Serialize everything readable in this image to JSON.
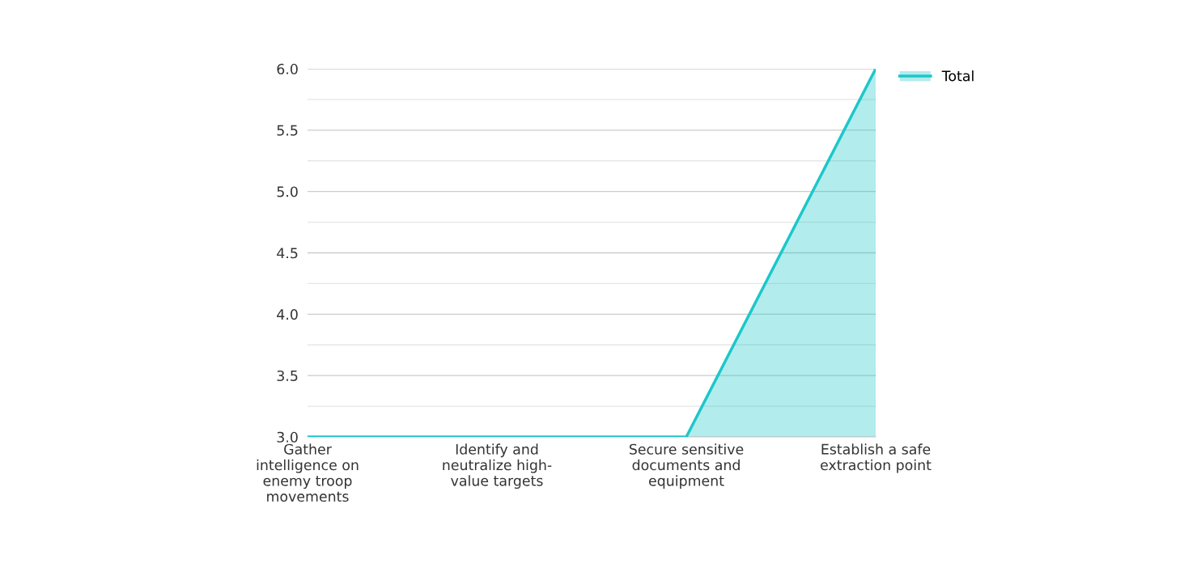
{
  "chart_data": {
    "type": "area",
    "categories": [
      "Gather\nintelligence on\nenemy troop\nmovements",
      "Identify and\nneutralize high-\nvalue targets",
      "Secure sensitive\ndocuments and\nequipment",
      "Establish a safe\nextraction point"
    ],
    "series": [
      {
        "name": "Total",
        "color": "#1cc7c9",
        "values": [
          3,
          3,
          3,
          6
        ]
      }
    ],
    "ylim": [
      3,
      6
    ],
    "yticks": [
      {
        "value": 3,
        "label": "3.0"
      },
      {
        "value": 3.25,
        "label": null
      },
      {
        "value": 3.5,
        "label": "3.5"
      },
      {
        "value": 3.75,
        "label": null
      },
      {
        "value": 4,
        "label": "4.0"
      },
      {
        "value": 4.25,
        "label": null
      },
      {
        "value": 4.5,
        "label": "4.5"
      },
      {
        "value": 4.75,
        "label": null
      },
      {
        "value": 5,
        "label": "5.0"
      },
      {
        "value": 5.25,
        "label": null
      },
      {
        "value": 5.5,
        "label": "5.5"
      },
      {
        "value": 5.75,
        "label": null
      },
      {
        "value": 6,
        "label": "6.0"
      }
    ],
    "grid": "y",
    "legend": "top right",
    "marker": "none",
    "line_style": "solid"
  }
}
